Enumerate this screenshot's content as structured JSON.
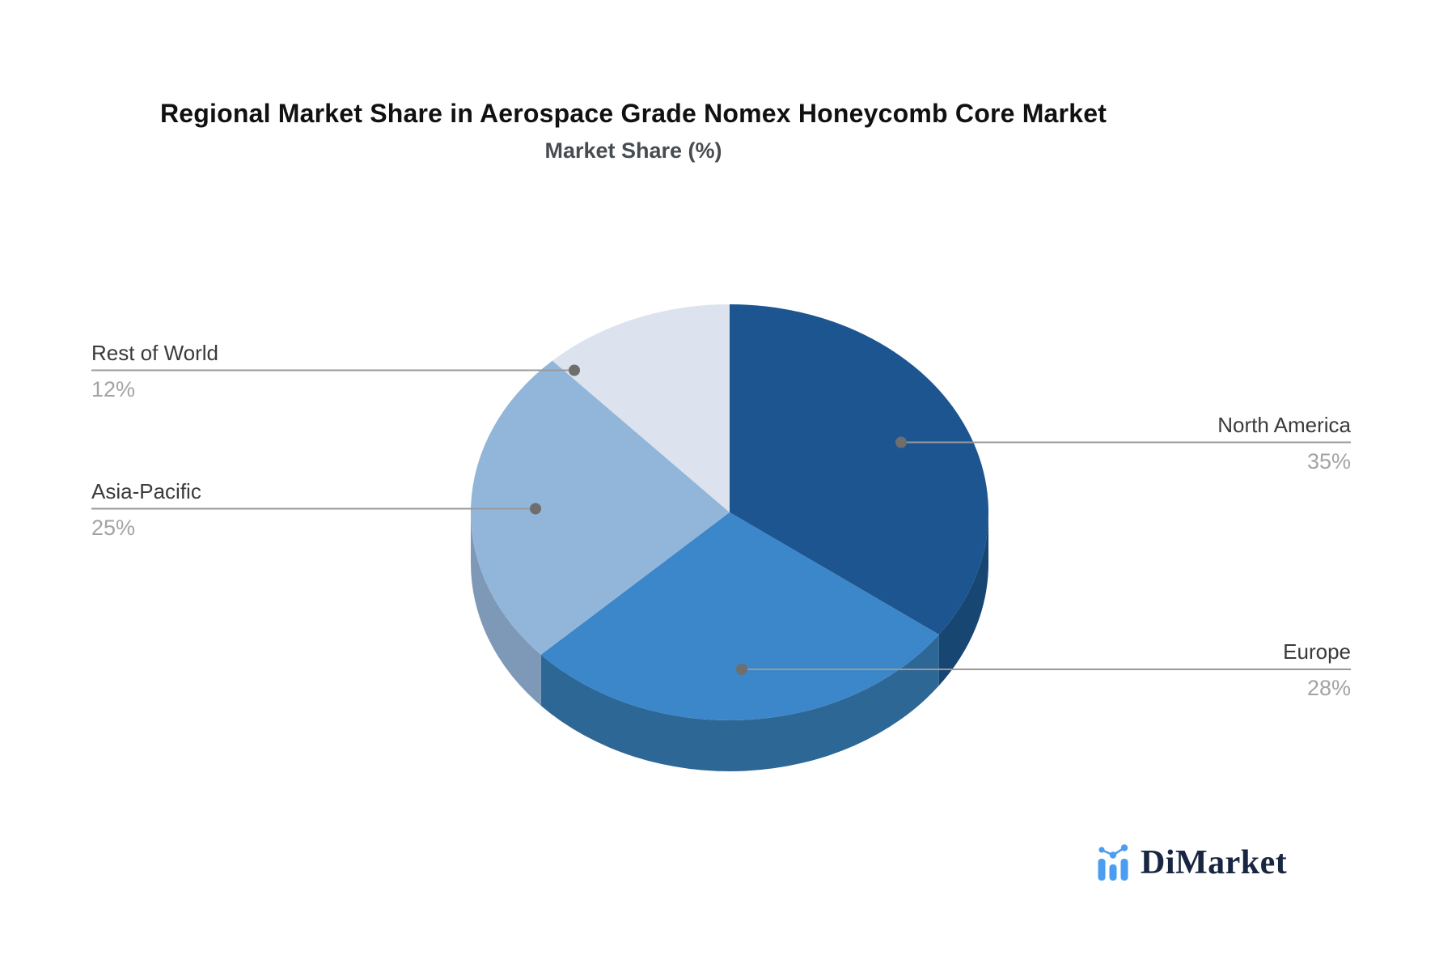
{
  "header": {
    "title": "Regional Market Share in Aerospace Grade Nomex Honeycomb Core Market",
    "subtitle": "Market Share (%)"
  },
  "chart_data": {
    "type": "pie",
    "style": "3d-pie",
    "title": "Regional Market Share in Aerospace Grade Nomex Honeycomb Core Market",
    "subtitle": "Market Share (%)",
    "unit": "%",
    "start_angle_deg": 0,
    "direction": "clockwise",
    "legend_position": "callout-labels",
    "slices": [
      {
        "label": "North America",
        "value": 35,
        "display": "35%",
        "color": "#1d5590",
        "side_color": "#174672"
      },
      {
        "label": "Europe",
        "value": 28,
        "display": "28%",
        "color": "#3c86ca",
        "side_color": "#2d6796"
      },
      {
        "label": "Asia-Pacific",
        "value": 25,
        "display": "25%",
        "color": "#92b6d9",
        "side_color": "#7e99b7"
      },
      {
        "label": "Rest of World",
        "value": 12,
        "display": "12%",
        "color": "#dce3ee",
        "side_color": "#b9c4d4"
      }
    ]
  },
  "branding": {
    "logo_text": "DiMarket",
    "logo_icon": "bar-chart-trend-icon",
    "logo_text_color": "#182642",
    "logo_accent_color": "#4a9df0"
  },
  "colors": {
    "leader_line": "#999999",
    "leader_dot": "#6e6e6e",
    "label_text": "#3a3a3a",
    "pct_text": "#a3a3a3",
    "title_text": "#111111",
    "subtitle_text": "#474c52"
  }
}
